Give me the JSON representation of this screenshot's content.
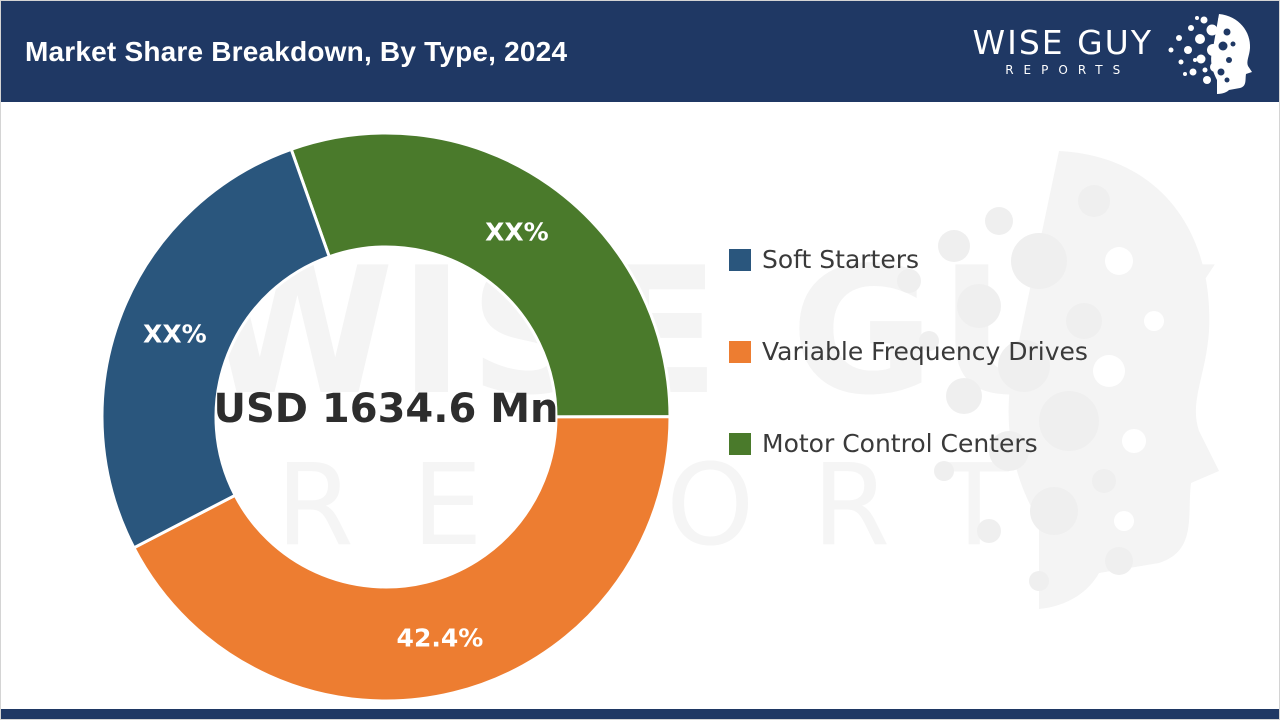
{
  "header": {
    "title": "Market Share Breakdown, By Type, 2024",
    "logo": {
      "line1": "WISE GUY",
      "line2": "REPORTS"
    }
  },
  "watermark": {
    "line1": "WISE GUY",
    "line2": "REPORTS"
  },
  "chart_data": {
    "type": "pie",
    "subtype": "donut",
    "title": "Market Share Breakdown, By Type, 2024",
    "center_label": "USD 1634.6 Mn",
    "total_value_usd_mn": 1634.6,
    "start_angle_deg_from_12": -19.5,
    "slices": [
      {
        "label": "Motor Control Centers",
        "value_pct": 30.4,
        "display_pct": "XX%",
        "color": "#4A7A2B"
      },
      {
        "label": "Variable Frequency Drives",
        "value_pct": 42.4,
        "display_pct": "42.4%",
        "color": "#ED7D31"
      },
      {
        "label": "Soft Starters",
        "value_pct": 27.2,
        "display_pct": "XX%",
        "color": "#2A567D"
      }
    ],
    "legend_position": "right",
    "legend": [
      {
        "label": "Soft Starters",
        "color": "#2A567D"
      },
      {
        "label": "Variable Frequency Drives",
        "color": "#ED7D31"
      },
      {
        "label": "Motor Control Centers",
        "color": "#4A7A2B"
      }
    ]
  },
  "colors": {
    "header_bg": "#1F3864",
    "footer_bg": "#1F3864",
    "center_text": "#2D2D2D",
    "legend_text": "#3A3A3A",
    "slice_label_text": "#FFFFFF"
  }
}
